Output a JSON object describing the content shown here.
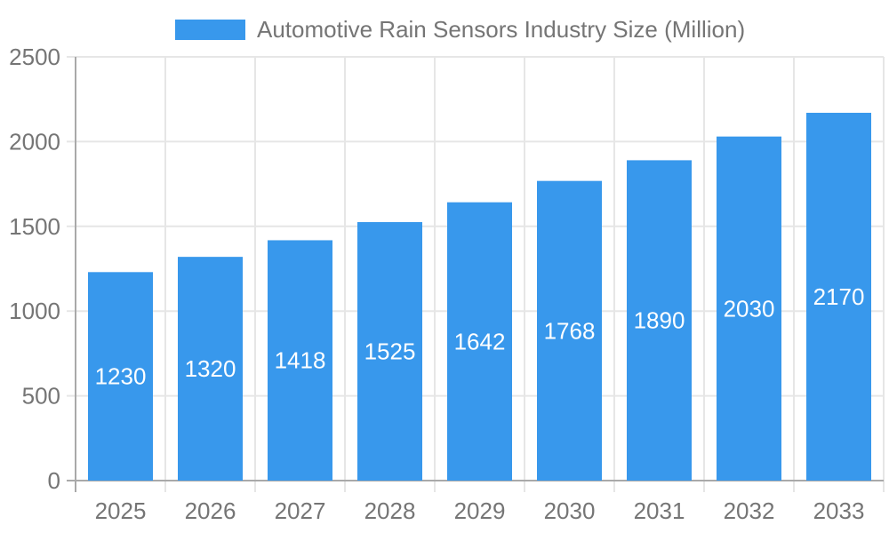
{
  "chart_data": {
    "type": "bar",
    "title": "",
    "legend": {
      "label": "Automotive Rain Sensors Industry Size (Million)",
      "position": "top"
    },
    "categories": [
      "2025",
      "2026",
      "2027",
      "2028",
      "2029",
      "2030",
      "2031",
      "2032",
      "2033"
    ],
    "values": [
      1230,
      1320,
      1418,
      1525,
      1642,
      1768,
      1890,
      2030,
      2170
    ],
    "xlabel": "",
    "ylabel": "",
    "ylim": [
      0,
      2500
    ],
    "yticks": [
      0,
      500,
      1000,
      1500,
      2000,
      2500
    ],
    "grid": true,
    "value_labels_shown": true,
    "colors": {
      "bar": "#3898EC",
      "value_label": "#FFFFFF",
      "axis_text": "#757575",
      "grid_line": "#E6E6E6",
      "axis_line": "#A9A9A9",
      "background": "#FFFFFF"
    }
  }
}
